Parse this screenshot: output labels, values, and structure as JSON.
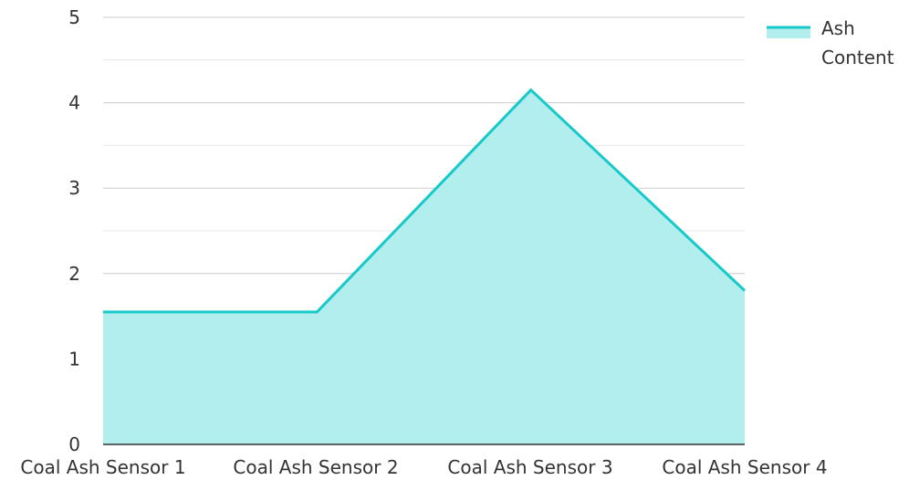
{
  "chart_data": {
    "type": "area",
    "categories": [
      "Coal Ash Sensor 1",
      "Coal Ash Sensor 2",
      "Coal Ash Sensor 3",
      "Coal Ash Sensor 4"
    ],
    "series": [
      {
        "name": "Ash Content",
        "values": [
          1.55,
          1.55,
          4.15,
          1.8
        ]
      }
    ],
    "ylim": [
      0,
      5
    ],
    "yticks": [
      0,
      1,
      2,
      3,
      4,
      5
    ],
    "title": "",
    "xlabel": "",
    "ylabel": "",
    "grid": true,
    "legend_position": "top-right",
    "colors": {
      "line": "#17c9c9",
      "fill": "#b2eeee",
      "grid": "#dddddd",
      "axis": "#333333"
    }
  },
  "legend": {
    "line1": "Ash",
    "line2": "Content"
  }
}
